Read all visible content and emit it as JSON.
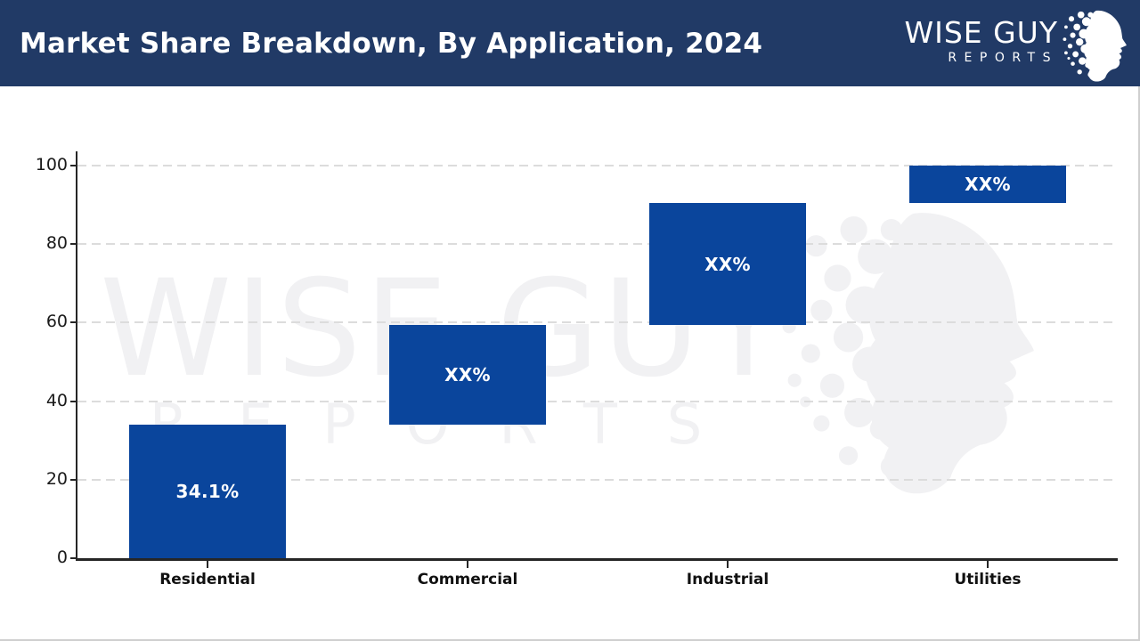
{
  "header": {
    "title": "Market Share Breakdown, By Application, 2024",
    "logo": {
      "name": "WISE GUY",
      "sub": "REPORTS",
      "head_icon": "dotted-head-profile-icon"
    }
  },
  "watermark": {
    "name": "WISE GUY",
    "sub": "REPORTS",
    "head_icon": "dotted-head-profile-icon"
  },
  "colors": {
    "header_bg": "#213a66",
    "bar_fill": "#0a459c",
    "bar_label_text": "#ffffff",
    "grid_line": "#dcdcdc",
    "axis_line": "#262626",
    "tick_text": "#1a1a1a",
    "watermark": "#f1f1f3",
    "frame_line": "#cfcfcf"
  },
  "chart_data": {
    "type": "bar",
    "variant": "floating-waterfall",
    "title": "Market Share Breakdown, By Application, 2024",
    "categories": [
      "Residential",
      "Commercial",
      "Industrial",
      "Utilities"
    ],
    "starts": [
      0,
      34.1,
      59.3,
      90.5
    ],
    "ends": [
      34.1,
      59.3,
      90.5,
      100
    ],
    "values": [
      34.1,
      25.2,
      31.2,
      9.5
    ],
    "bar_labels": [
      "34.1%",
      "XX%",
      "XX%",
      "XX%"
    ],
    "yticks": [
      0,
      20,
      40,
      60,
      80,
      100
    ],
    "ylim": [
      0,
      103.6
    ],
    "xlabel": "",
    "ylabel": "",
    "legend": "none",
    "grid": "horizontal-dashed"
  }
}
